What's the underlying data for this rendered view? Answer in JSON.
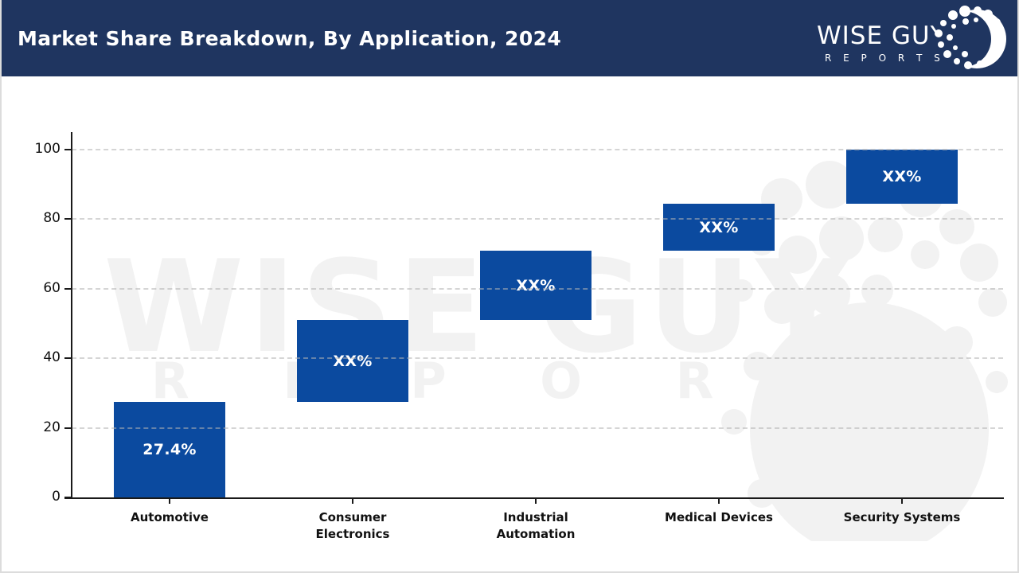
{
  "header": {
    "title": "Market Share Breakdown, By Application, 2024",
    "bg_color": "#1f3560",
    "logo": {
      "line1": "WISE GUY",
      "line2": "R E P O R T S"
    }
  },
  "watermark": {
    "line1": "WISE GUY",
    "line2": "R E P O R T S"
  },
  "colors": {
    "bar": "#0b4a9f",
    "axis": "#1a1a1a",
    "grid": "#d9d9d9",
    "watermark": "#f2f2f2"
  },
  "chart_data": {
    "type": "bar",
    "subtype": "waterfall-floating-bars",
    "title": "Market Share Breakdown, By Application, 2024",
    "categories": [
      "Automotive",
      "Consumer Electronics",
      "Industrial Automation",
      "Medical Devices",
      "Security Systems"
    ],
    "segments": [
      {
        "category": "Automotive",
        "tick_lines": [
          "Automotive"
        ],
        "start": 0,
        "end": 27.4,
        "value": 27.4,
        "value_label": "27.4%"
      },
      {
        "category": "Consumer Electronics",
        "tick_lines": [
          "Consumer",
          "Electronics"
        ],
        "start": 27.4,
        "end": 51.0,
        "value": 23.6,
        "value_label": "XX%"
      },
      {
        "category": "Industrial Automation",
        "tick_lines": [
          "Industrial",
          "Automation"
        ],
        "start": 51.0,
        "end": 70.8,
        "value": 19.8,
        "value_label": "XX%"
      },
      {
        "category": "Medical Devices",
        "tick_lines": [
          "Medical Devices"
        ],
        "start": 70.8,
        "end": 84.4,
        "value": 13.6,
        "value_label": "XX%"
      },
      {
        "category": "Security Systems",
        "tick_lines": [
          "Security Systems"
        ],
        "start": 84.4,
        "end": 100.0,
        "value": 15.6,
        "value_label": "XX%"
      }
    ],
    "xlabel": "",
    "ylabel": "",
    "ylim": [
      0,
      100
    ],
    "yticks": [
      0,
      20,
      40,
      60,
      80,
      100
    ],
    "grid": "horizontal-dashed",
    "legend": "none"
  }
}
